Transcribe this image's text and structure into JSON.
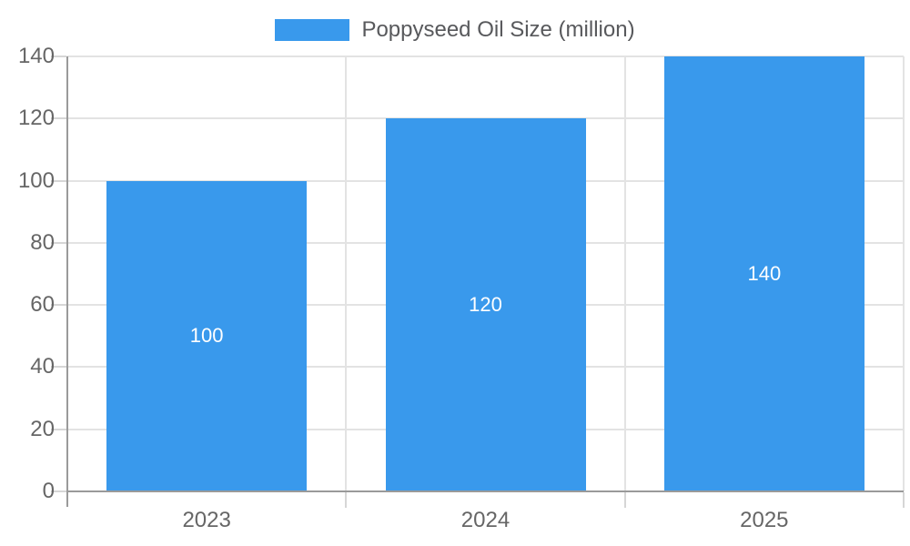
{
  "legend": {
    "position": "top",
    "label": "Poppyseed Oil Size (million)"
  },
  "chart_data": {
    "type": "bar",
    "title": "",
    "xlabel": "",
    "ylabel": "",
    "categories": [
      "2023",
      "2024",
      "2025"
    ],
    "series": [
      {
        "name": "Poppyseed Oil Size (million)",
        "values": [
          100,
          120,
          140
        ]
      }
    ],
    "data_labels": [
      "100",
      "120",
      "140"
    ],
    "ylim": [
      0,
      140
    ],
    "ytick_interval": 20,
    "ytick_labels": [
      "0",
      "20",
      "40",
      "60",
      "80",
      "100",
      "120",
      "140"
    ],
    "grid": true,
    "legend_position": "top",
    "colors": {
      "bar": "#3999EC",
      "data_label_text": "#FFFFFF",
      "axis_label_text": "#666666",
      "legend_text": "#58595C",
      "gridline": "#E3E3E3",
      "tick": "#D6D6D6",
      "axis_line": "#9A9A9A",
      "background": "#FFFFFF"
    }
  }
}
